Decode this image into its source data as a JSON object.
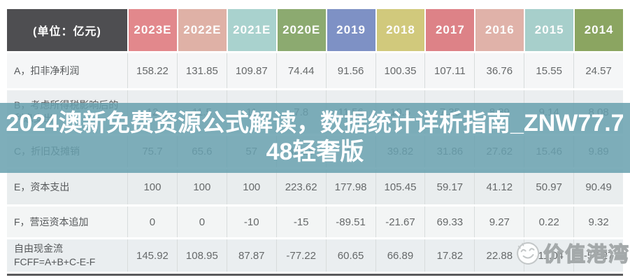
{
  "table": {
    "unit_label": "(单位：亿元)",
    "columns": [
      "2023E",
      "2022E",
      "2021E",
      "2020E",
      "2019",
      "2018",
      "2017",
      "2016",
      "2015",
      "2014"
    ],
    "column_colors": [
      "#e2888c",
      "#dfb1a6",
      "#a9d2ce",
      "#8caa70",
      "#7e91c5",
      "#d1c97c",
      "#dd8287",
      "#e0b2a9",
      "#a7cfcb",
      "#8ba561"
    ],
    "rows": [
      {
        "label": "A，扣非净利润",
        "values": [
          "158.22",
          "131.85",
          "109.87",
          "74.44",
          "91.56",
          "100.35",
          "107.11",
          "36.76",
          "15.55",
          "24.57"
        ]
      },
      {
        "label": "B，考虑所得税影响后的利息支出",
        "values": [
          "12",
          "11.5",
          "11",
          "7.8",
          "11.56",
          "10.5",
          "7.35",
          "8.89",
          "9.14",
          "8.08"
        ]
      },
      {
        "label": "C，折旧及摊销",
        "values": [
          "75.7",
          "65.6",
          "57",
          "49.16",
          "46",
          "39.82",
          "31.86",
          "27.62",
          "15.46",
          "9.89"
        ]
      },
      {
        "label": "E，资本支出",
        "values": [
          "100",
          "100",
          "100",
          "223.62",
          "177.98",
          "105.45",
          "59.17",
          "41.12",
          "50.97",
          "90.49"
        ]
      },
      {
        "label": "F，营运资本追加",
        "values": [
          "0",
          "0",
          "-10",
          "-15",
          "-89.51",
          "-21.67",
          "69.33",
          "9.27",
          "0.22",
          "9.32"
        ]
      },
      {
        "label": "自由现金流",
        "label2": "FCFF=A+B+C-E-F",
        "values": [
          "145.92",
          "108.95",
          "87.87",
          "-77.22",
          "60.65",
          "66.89",
          "17.82",
          "22.88",
          "-11.04",
          "-57.27"
        ]
      }
    ]
  },
  "overlay": {
    "line1": "2024澳新免费资源公式解读，数据统计详析指南_ZNW77.7",
    "line2": "48轻奢版"
  },
  "watermark": {
    "text": "价值港湾",
    "icon": "smiley-face"
  }
}
